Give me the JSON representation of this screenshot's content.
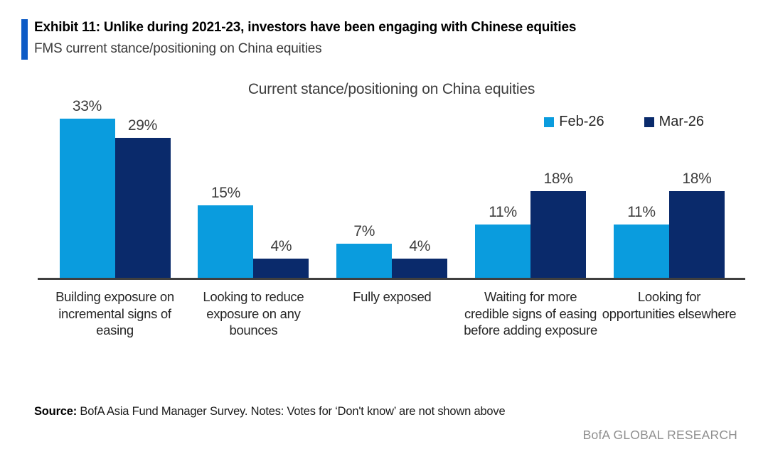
{
  "header": {
    "exhibit_title": "Exhibit 11: Unlike during 2021-23, investors have been engaging with Chinese equities",
    "subtitle": "FMS current stance/positioning on China equities"
  },
  "chart_data": {
    "type": "bar",
    "title": "Current stance/positioning on China equities",
    "categories": [
      "Building exposure on incremental signs of easing",
      "Looking to reduce exposure on any bounces",
      "Fully exposed",
      "Waiting for more credible signs of easing before adding exposure",
      "Looking for opportunities elsewhere"
    ],
    "series": [
      {
        "name": "Feb-26",
        "color": "#0A9CDE",
        "values": [
          33,
          15,
          7,
          11,
          11
        ]
      },
      {
        "name": "Mar-26",
        "color": "#0A2A6B",
        "values": [
          29,
          4,
          4,
          18,
          18
        ]
      }
    ],
    "value_suffix": "%",
    "ylim": [
      0,
      36
    ],
    "grid": false,
    "data_labels": true,
    "legend_position": "top-right",
    "axis_color": "#3F3F3F"
  },
  "footer": {
    "source_label": "Source:",
    "source_text": " BofA Asia Fund Manager Survey. Notes: Votes for ‘Don't know’ are not shown above",
    "brand": "BofA GLOBAL RESEARCH"
  },
  "colors": {
    "accent_bar": "#0D5BC6",
    "feb_series": "#0A9CDE",
    "mar_series": "#0A2A6B"
  }
}
